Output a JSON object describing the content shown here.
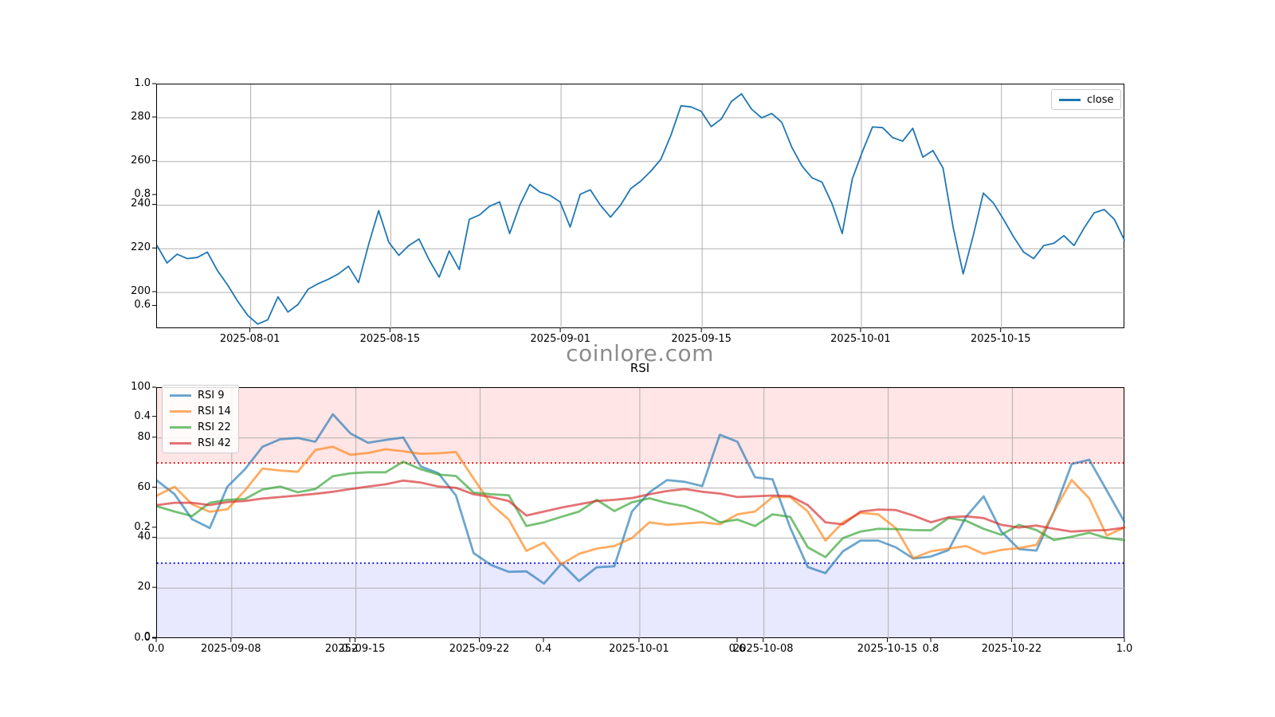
{
  "watermark": "coinlore.com",
  "chart_data": [
    {
      "id": "price",
      "type": "line",
      "title": "",
      "xlabel": "",
      "ylabel": "",
      "legend": [
        "close"
      ],
      "legend_loc": "upper right",
      "ylim": [
        183.6,
        295.3
      ],
      "grid": true,
      "yticks": [
        {
          "label": "280",
          "v": 280
        },
        {
          "label": "260",
          "v": 260
        },
        {
          "label": "240",
          "v": 240
        },
        {
          "label": "220",
          "v": 220
        },
        {
          "label": "200",
          "v": 200
        }
      ],
      "xticks": [
        {
          "label": "2025-08-01",
          "i": 9.3
        },
        {
          "label": "2025-08-15",
          "i": 23.2
        },
        {
          "label": "2025-09-01",
          "i": 40.1
        },
        {
          "label": "2025-09-15",
          "i": 54.1
        },
        {
          "label": "2025-10-01",
          "i": 69.9
        },
        {
          "label": "2025-10-15",
          "i": 83.8
        }
      ],
      "series": [
        {
          "name": "close",
          "color": "#1f77b4",
          "width": 1.8,
          "opacity": 1,
          "values": [
            221.5,
            213.5,
            217.5,
            215.5,
            216.0,
            218.5,
            210.0,
            203.5,
            196.0,
            189.5,
            185.5,
            187.5,
            198.0,
            191.0,
            194.5,
            201.5,
            204.0,
            206.0,
            208.5,
            212.0,
            204.5,
            222.0,
            237.5,
            223.0,
            217.0,
            221.5,
            224.5,
            215.0,
            207.0,
            219.0,
            210.5,
            233.5,
            235.5,
            239.5,
            241.5,
            227.0,
            240.0,
            249.5,
            246.0,
            244.5,
            241.5,
            230.0,
            245.0,
            247.0,
            240.0,
            234.5,
            240.0,
            247.5,
            251.0,
            255.5,
            261.0,
            272.0,
            285.5,
            285.0,
            283.0,
            276.0,
            279.5,
            287.5,
            291.0,
            284.0,
            280.0,
            282.0,
            278.0,
            266.5,
            258.0,
            252.5,
            250.5,
            240.5,
            227.0,
            252.0,
            264.5,
            275.8,
            275.5,
            271.0,
            269.3,
            275.2,
            262.0,
            265.0,
            257.0,
            230.0,
            208.5,
            226.0,
            245.5,
            241.0,
            233.5,
            225.5,
            218.5,
            215.5,
            221.5,
            222.5,
            226.0,
            221.5,
            229.5,
            236.5,
            238.0,
            233.5,
            224.0
          ]
        }
      ]
    },
    {
      "id": "rsi",
      "type": "line",
      "title": "RSI",
      "xlabel": "",
      "ylabel": "",
      "legend": [
        "RSI 9",
        "RSI 14",
        "RSI 22",
        "RSI 42"
      ],
      "legend_loc": "upper left",
      "ylim": [
        0,
        100
      ],
      "grid": true,
      "yticks": [
        {
          "label": "100",
          "v": 100
        },
        {
          "label": "80",
          "v": 80
        },
        {
          "label": "60",
          "v": 60
        },
        {
          "label": "40",
          "v": 40
        },
        {
          "label": "20",
          "v": 20
        },
        {
          "label": "0",
          "v": 0
        }
      ],
      "xticks": [
        {
          "label": "2025-09-08",
          "i": 4.25
        },
        {
          "label": "2025-09-15",
          "i": 11.31
        },
        {
          "label": "2025-09-22",
          "i": 18.37
        },
        {
          "label": "2025-10-01",
          "i": 27.45
        },
        {
          "label": "2025-10-08",
          "i": 34.51
        },
        {
          "label": "2025-10-15",
          "i": 41.57
        },
        {
          "label": "2025-10-22",
          "i": 48.63
        }
      ],
      "hlines": [
        {
          "v": 70,
          "color": "#e00000",
          "style": "dotted"
        },
        {
          "v": 30,
          "color": "#0000dd",
          "style": "dotted"
        }
      ],
      "bands": [
        {
          "from": 70,
          "to": 100,
          "color": "rgba(255,0,0,0.10)"
        },
        {
          "from": 0,
          "to": 30,
          "color": "rgba(0,0,255,0.09)"
        }
      ],
      "series": [
        {
          "name": "RSI 9",
          "color": "#1f77b4",
          "width": 2.8,
          "opacity": 0.65,
          "values": [
            63.0,
            57.5,
            47.5,
            44.0,
            60.5,
            67.5,
            76.5,
            79.5,
            80.0,
            78.5,
            89.5,
            81.8,
            78.1,
            79.2,
            80.2,
            68.6,
            65.9,
            57.0,
            34.0,
            29.2,
            26.5,
            26.7,
            21.8,
            29.8,
            22.8,
            28.3,
            28.7,
            50.6,
            58.3,
            63.2,
            62.5,
            60.8,
            81.3,
            78.5,
            64.3,
            63.5,
            44.2,
            28.4,
            26.0,
            34.7,
            39.0,
            39.0,
            36.3,
            31.8,
            32.6,
            35.2,
            48.5,
            56.7,
            42.6,
            35.6,
            35.0,
            50.6,
            69.6,
            71.3,
            59.0,
            46.5
          ]
        },
        {
          "name": "RSI 14",
          "color": "#ff7f0e",
          "width": 2.8,
          "opacity": 0.65,
          "values": [
            57.0,
            60.5,
            53.5,
            50.5,
            51.5,
            59.0,
            67.8,
            67.0,
            66.5,
            75.2,
            76.5,
            73.3,
            74.0,
            75.5,
            74.7,
            73.7,
            73.9,
            74.4,
            63.8,
            53.5,
            47.4,
            34.9,
            38.2,
            29.6,
            33.7,
            35.8,
            36.8,
            40.0,
            46.3,
            45.3,
            45.8,
            46.3,
            45.5,
            49.5,
            50.6,
            56.4,
            56.4,
            50.6,
            39.0,
            46.3,
            50.1,
            49.5,
            44.0,
            32.0,
            34.7,
            35.8,
            36.8,
            33.7,
            35.3,
            36.0,
            37.3,
            50.6,
            63.2,
            55.9,
            41.0,
            44.2
          ]
        },
        {
          "name": "RSI 22",
          "color": "#2ca02c",
          "width": 2.8,
          "opacity": 0.65,
          "values": [
            52.7,
            50.6,
            48.8,
            54.1,
            55.3,
            55.6,
            59.4,
            60.6,
            58.3,
            59.6,
            64.7,
            65.9,
            66.3,
            66.3,
            70.5,
            67.5,
            65.4,
            64.8,
            58.2,
            57.5,
            57.1,
            44.8,
            46.3,
            48.5,
            50.6,
            55.3,
            50.8,
            54.3,
            55.9,
            54.0,
            52.7,
            50.1,
            46.3,
            47.4,
            44.8,
            49.5,
            48.5,
            36.3,
            32.4,
            40.0,
            42.6,
            43.7,
            43.6,
            43.2,
            43.1,
            48.0,
            46.9,
            43.7,
            41.3,
            45.3,
            43.2,
            39.2,
            40.5,
            42.1,
            40.0,
            39.2
          ]
        },
        {
          "name": "RSI 42",
          "color": "#d62728",
          "width": 2.8,
          "opacity": 0.65,
          "values": [
            53.2,
            54.1,
            54.1,
            53.2,
            54.4,
            54.8,
            55.8,
            56.4,
            57.0,
            57.7,
            58.5,
            59.6,
            60.6,
            61.5,
            63.0,
            62.2,
            60.6,
            60.1,
            57.5,
            56.4,
            54.8,
            49.0,
            50.6,
            52.2,
            53.5,
            54.8,
            55.3,
            56.0,
            57.5,
            58.8,
            59.6,
            58.5,
            57.8,
            56.4,
            56.7,
            57.0,
            56.8,
            53.2,
            46.3,
            45.5,
            50.6,
            51.4,
            51.2,
            49.0,
            46.3,
            48.3,
            48.7,
            48.0,
            45.3,
            44.2,
            45.0,
            43.7,
            42.6,
            43.0,
            43.2,
            44.2
          ]
        }
      ]
    }
  ],
  "fraction_axis": {
    "yticks": [
      {
        "label": "1.0",
        "f": 1.0
      },
      {
        "label": "0.8",
        "f": 0.8
      },
      {
        "label": "0.6",
        "f": 0.6
      },
      {
        "label": "0.4",
        "f": 0.4
      },
      {
        "label": "0.2",
        "f": 0.2
      },
      {
        "label": "0.0",
        "f": 0.0
      }
    ],
    "xticks": [
      {
        "label": "0.0",
        "f": 0.0
      },
      {
        "label": "0.2",
        "f": 0.2
      },
      {
        "label": "0.4",
        "f": 0.4
      },
      {
        "label": "0.6",
        "f": 0.6
      },
      {
        "label": "0.8",
        "f": 0.8
      },
      {
        "label": "1.0",
        "f": 1.0
      }
    ]
  }
}
